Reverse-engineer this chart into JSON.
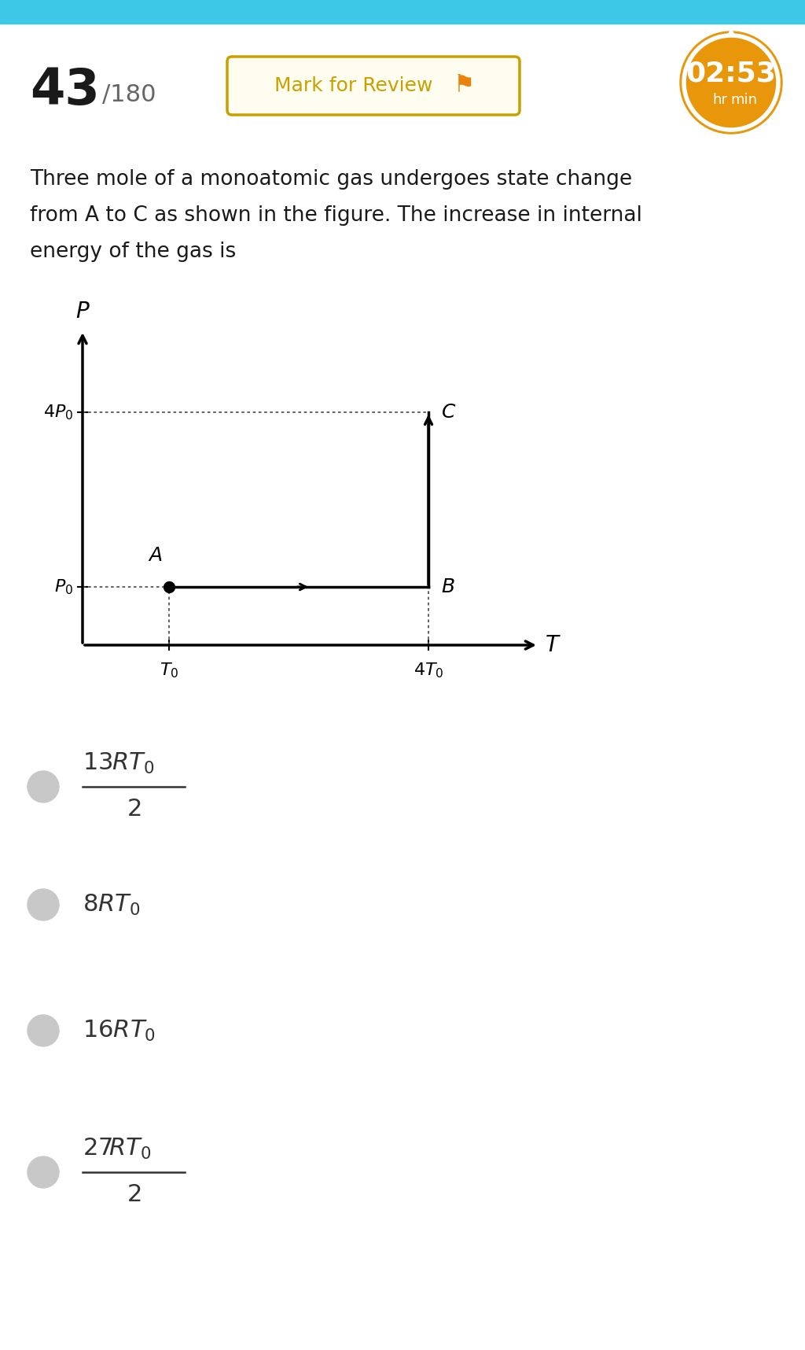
{
  "bg_color": "#ffffff",
  "top_bar_color": "#3ec8e8",
  "question_number": "43",
  "question_denom": "/180",
  "timer_text": "02:53",
  "timer_sub_left": "hr",
  "timer_sub_right": "min",
  "timer_bg": "#e8960a",
  "mark_review_text": "Mark for Review",
  "mark_review_border": "#c8a000",
  "mark_review_text_color": "#c8a000",
  "question_text_line1": "Three mole of a monoatomic gas undergoes state change",
  "question_text_line2": "from A to C as shown in the figure. The increase in internal",
  "question_text_line3": "energy of the gas is",
  "opt1_num": "$13RT_0$",
  "opt1_den": "$2$",
  "opt2": "$8RT_0$",
  "opt3": "$16RT_0$",
  "opt4_num": "$27RT_0$",
  "opt4_den": "$2$",
  "option_circle_color": "#c8c8c8",
  "option_text_color": "#333333",
  "fig_width": 10.24,
  "fig_height": 17.16,
  "dpi": 100
}
